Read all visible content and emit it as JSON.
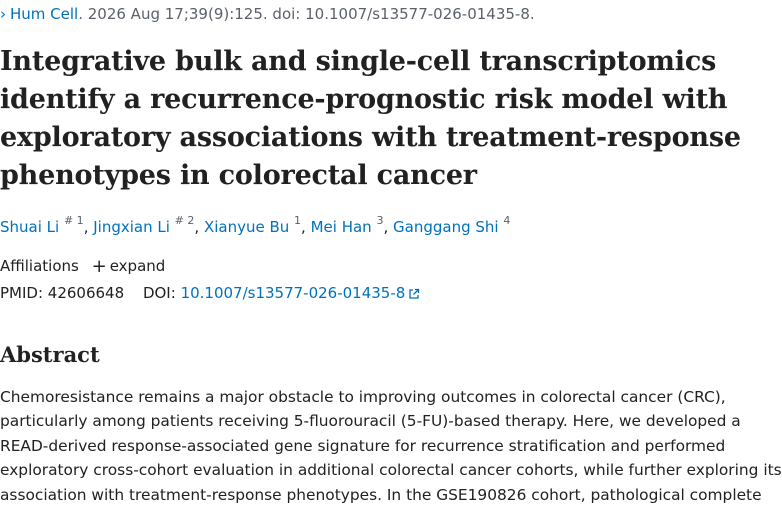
{
  "citation": {
    "journal": "Hum Cell",
    "details": ". 2026 Aug 17;39(9):125. doi: 10.1007/s13577-026-01435-8."
  },
  "title_lines": [
    "Integrative bulk and single-cell transcriptomics",
    "identify a recurrence-prognostic risk model with",
    "exploratory associations with treatment-response",
    "phenotypes in colorectal cancer"
  ],
  "authors": [
    {
      "name": "Shuai Li",
      "sup": "# 1"
    },
    {
      "name": "Jingxian Li",
      "sup": "# 2"
    },
    {
      "name": "Xianyue Bu",
      "sup": "1"
    },
    {
      "name": "Mei Han",
      "sup": "3"
    },
    {
      "name": "Ganggang Shi",
      "sup": "4"
    }
  ],
  "affiliations": {
    "label": "Affiliations",
    "expand_label": "expand"
  },
  "identifiers": {
    "pmid_label": "PMID:",
    "pmid": "42606648",
    "doi_label": "DOI:",
    "doi": "10.1007/s13577-026-01435-8"
  },
  "abstract": {
    "heading": "Abstract",
    "lines": [
      "Chemoresistance remains a major obstacle to improving outcomes in colorectal cancer (CRC),",
      "particularly among patients receiving 5-fluorouracil (5-FU)-based therapy. Here, we developed a",
      "READ-derived response-associated gene signature for recurrence stratification and performed",
      "exploratory cross-cohort evaluation in additional colorectal cancer cohorts, while further exploring its",
      "association with treatment-response phenotypes. In the GSE190826 cohort, pathological complete"
    ]
  },
  "colors": {
    "link": "#0071bc",
    "text": "#212121",
    "muted": "#5b616b"
  }
}
